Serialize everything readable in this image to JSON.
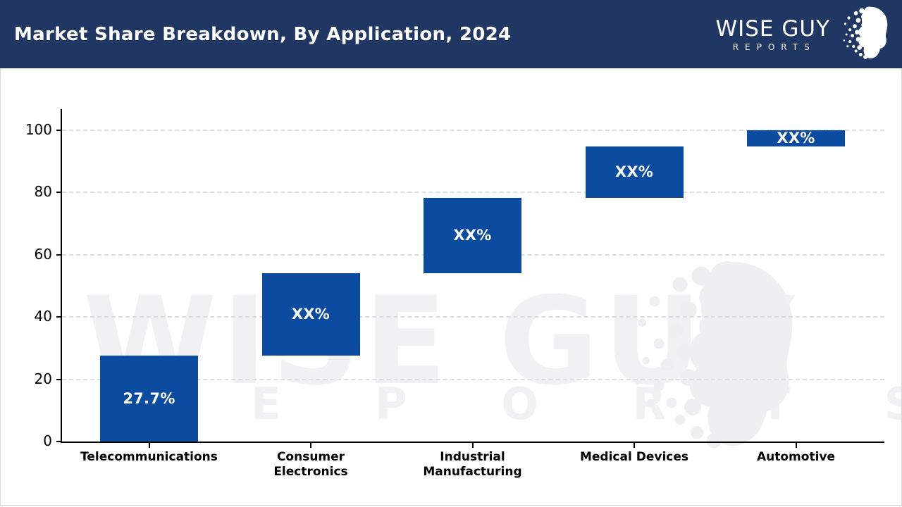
{
  "header": {
    "title": "Market Share Breakdown, By Application, 2024",
    "logo": {
      "name": "WISE GUY",
      "sub": "REPORTS"
    }
  },
  "watermark": {
    "name": "WISE GUY",
    "sub": "REPORTS"
  },
  "chart_data": {
    "type": "bar",
    "subtype": "waterfall",
    "title": "Market Share Breakdown, By Application, 2024",
    "categories": [
      "Telecommunications",
      "Consumer Electronics",
      "Industrial Manufacturing",
      "Medical Devices",
      "Automotive"
    ],
    "segments": [
      {
        "category": "Telecommunications",
        "category_lines": [
          "Telecommunications"
        ],
        "start": 0,
        "end": 27.7,
        "value": 27.7,
        "label": "27.7%"
      },
      {
        "category": "Consumer Electronics",
        "category_lines": [
          "Consumer",
          "Electronics"
        ],
        "start": 27.7,
        "end": 54.1,
        "value": 26.4,
        "label": "XX%"
      },
      {
        "category": "Industrial Manufacturing",
        "category_lines": [
          "Industrial",
          "Manufacturing"
        ],
        "start": 54.1,
        "end": 78.3,
        "value": 24.2,
        "label": "XX%"
      },
      {
        "category": "Medical Devices",
        "category_lines": [
          "Medical Devices"
        ],
        "start": 78.3,
        "end": 94.8,
        "value": 16.5,
        "label": "XX%"
      },
      {
        "category": "Automotive",
        "category_lines": [
          "Automotive"
        ],
        "start": 94.8,
        "end": 100,
        "value": 5.2,
        "label": "XX%"
      }
    ],
    "yticks": [
      0,
      20,
      40,
      60,
      80,
      100
    ],
    "ylim": [
      0,
      105
    ],
    "xlabel": "",
    "ylabel": "",
    "grid": {
      "axis": "y",
      "style": "dashed",
      "color": "#dcdcdc"
    },
    "legend": null,
    "bar_color": "#0B4BA0",
    "value_label_color": "#ffffff",
    "header_color": "#213763"
  }
}
